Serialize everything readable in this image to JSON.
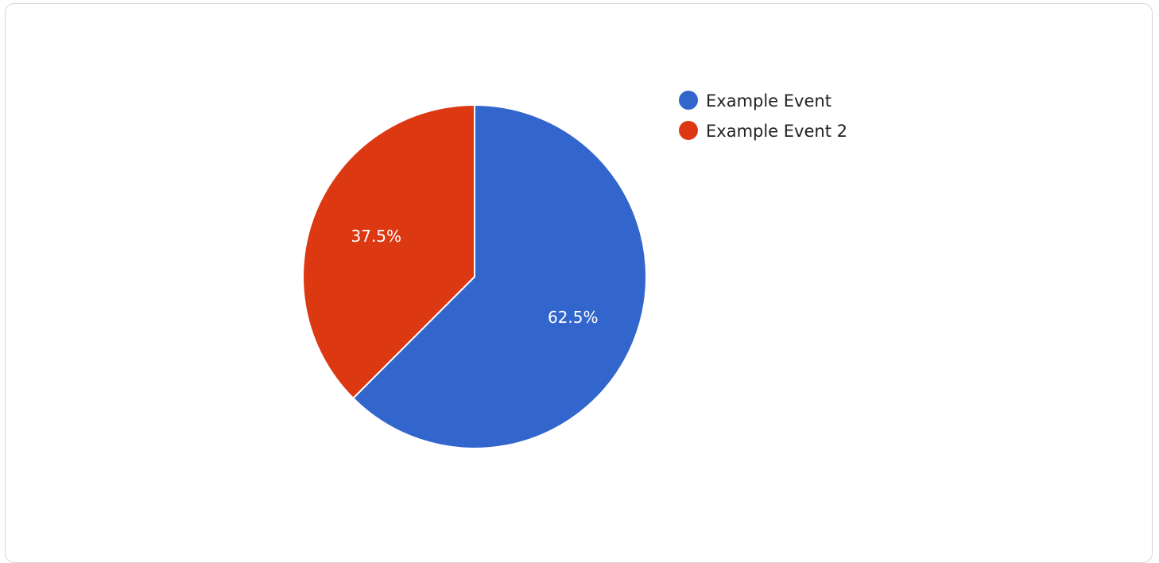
{
  "chart_data": {
    "type": "pie",
    "title": "",
    "slices": [
      {
        "label": "Example Event",
        "value": 62.5,
        "display": "62.5%",
        "color": "#3366cc"
      },
      {
        "label": "Example Event 2",
        "value": 37.5,
        "display": "37.5%",
        "color": "#dc3912"
      }
    ],
    "legend": {
      "position": "right"
    }
  }
}
